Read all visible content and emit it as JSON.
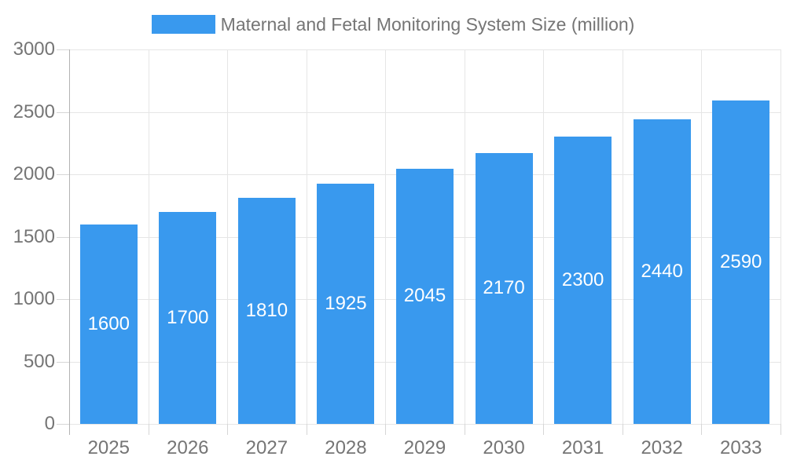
{
  "legend": {
    "label": "Maternal and Fetal Monitoring System Size (million)"
  },
  "colors": {
    "bar": "#3999ee",
    "axis_text": "#757575",
    "grid": "#e6e6e6",
    "axis_line": "#b3b3b3",
    "tick": "#d6d6d6",
    "bar_label_text": "#ffffff"
  },
  "chart_data": {
    "type": "bar",
    "title": "Maternal and Fetal Monitoring System Size (million)",
    "categories": [
      "2025",
      "2026",
      "2027",
      "2028",
      "2029",
      "2030",
      "2031",
      "2032",
      "2033"
    ],
    "values": [
      1600,
      1700,
      1810,
      1925,
      2045,
      2170,
      2300,
      2440,
      2590
    ],
    "series": [
      {
        "name": "Maternal and Fetal Monitoring System Size (million)",
        "values": [
          1600,
          1700,
          1810,
          1925,
          2045,
          2170,
          2300,
          2440,
          2590
        ]
      }
    ],
    "xlabel": "",
    "ylabel": "",
    "ylim": [
      0,
      3000
    ],
    "yticks": [
      0,
      500,
      1000,
      1500,
      2000,
      2500,
      3000
    ],
    "grid": true,
    "legend_position": "top",
    "bar_value_labels": "centered-inside-bars"
  }
}
